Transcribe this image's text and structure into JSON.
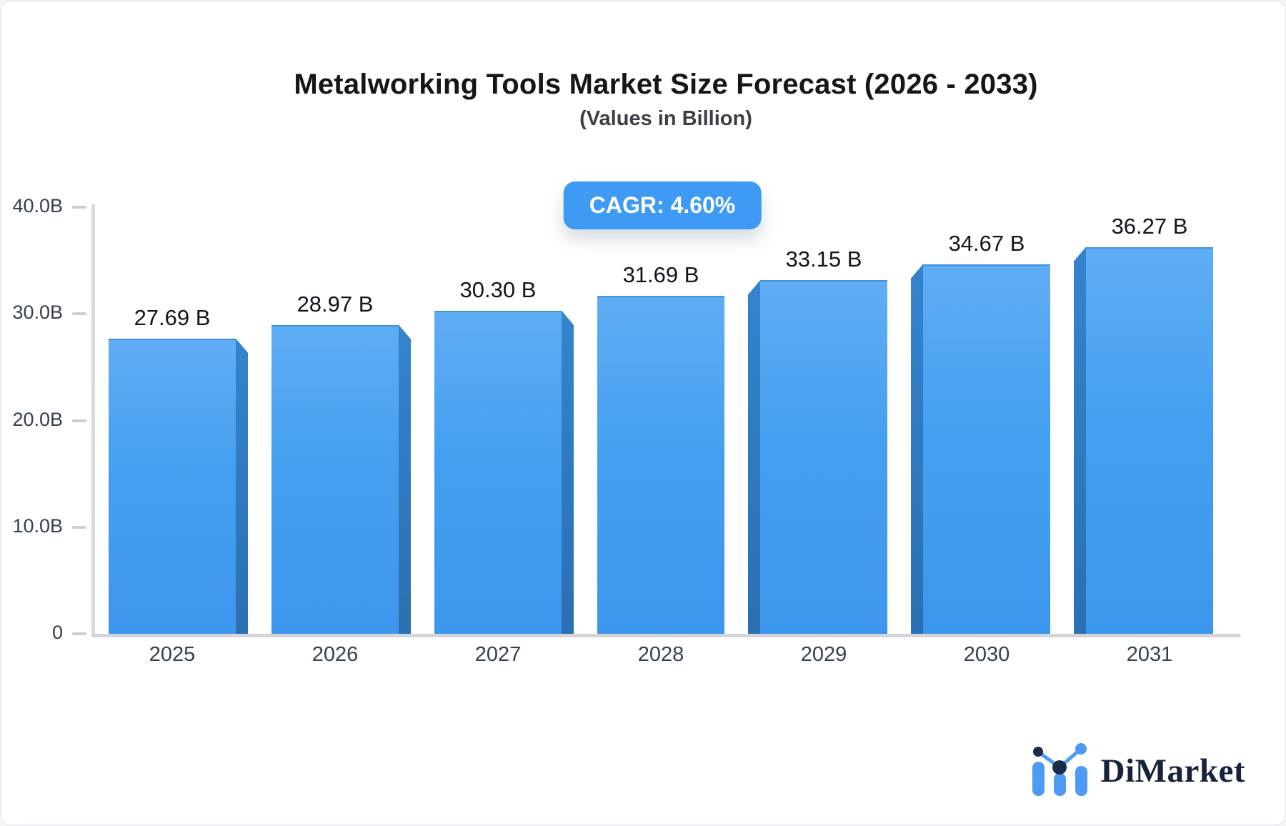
{
  "title": "Metalworking Tools Market Size Forecast (2026 - 2033)",
  "subtitle": "(Values in Billion)",
  "cagr_badge": "CAGR: 4.60%",
  "brand": {
    "name": "DiMarket",
    "icon": "bar-line-chart-logo-icon"
  },
  "colors": {
    "bar_front": "#459ff0",
    "bar_side": "#2d77bd",
    "badge_bg": "#3e9af3",
    "axis_gray": "#d7dbdf",
    "text_dark": "#10161d",
    "logo_navy": "#16233d",
    "logo_blue": "#4d9bf5"
  },
  "chart_data": {
    "type": "bar",
    "style": "3d-perspective-bars",
    "title": "Metalworking Tools Market Size Forecast (2026 - 2033)",
    "subtitle": "(Values in Billion)",
    "categories": [
      "2025",
      "2026",
      "2027",
      "2028",
      "2029",
      "2030",
      "2031"
    ],
    "values": [
      27.69,
      28.97,
      30.3,
      31.69,
      33.15,
      34.67,
      36.27
    ],
    "value_labels": [
      "27.69 B",
      "28.97 B",
      "30.30 B",
      "31.69 B",
      "33.15 B",
      "34.67 B",
      "36.27 B"
    ],
    "xlabel": "",
    "ylabel": "",
    "ylim": [
      0,
      40
    ],
    "yticks": [
      {
        "value": 0,
        "label": "0"
      },
      {
        "value": 10,
        "label": "10.0B"
      },
      {
        "value": 20,
        "label": "20.0B"
      },
      {
        "value": 30,
        "label": "30.0B"
      },
      {
        "value": 40,
        "label": "40.0B"
      }
    ],
    "grid": false,
    "legend": false,
    "annotations": [
      "CAGR: 4.60%"
    ]
  }
}
